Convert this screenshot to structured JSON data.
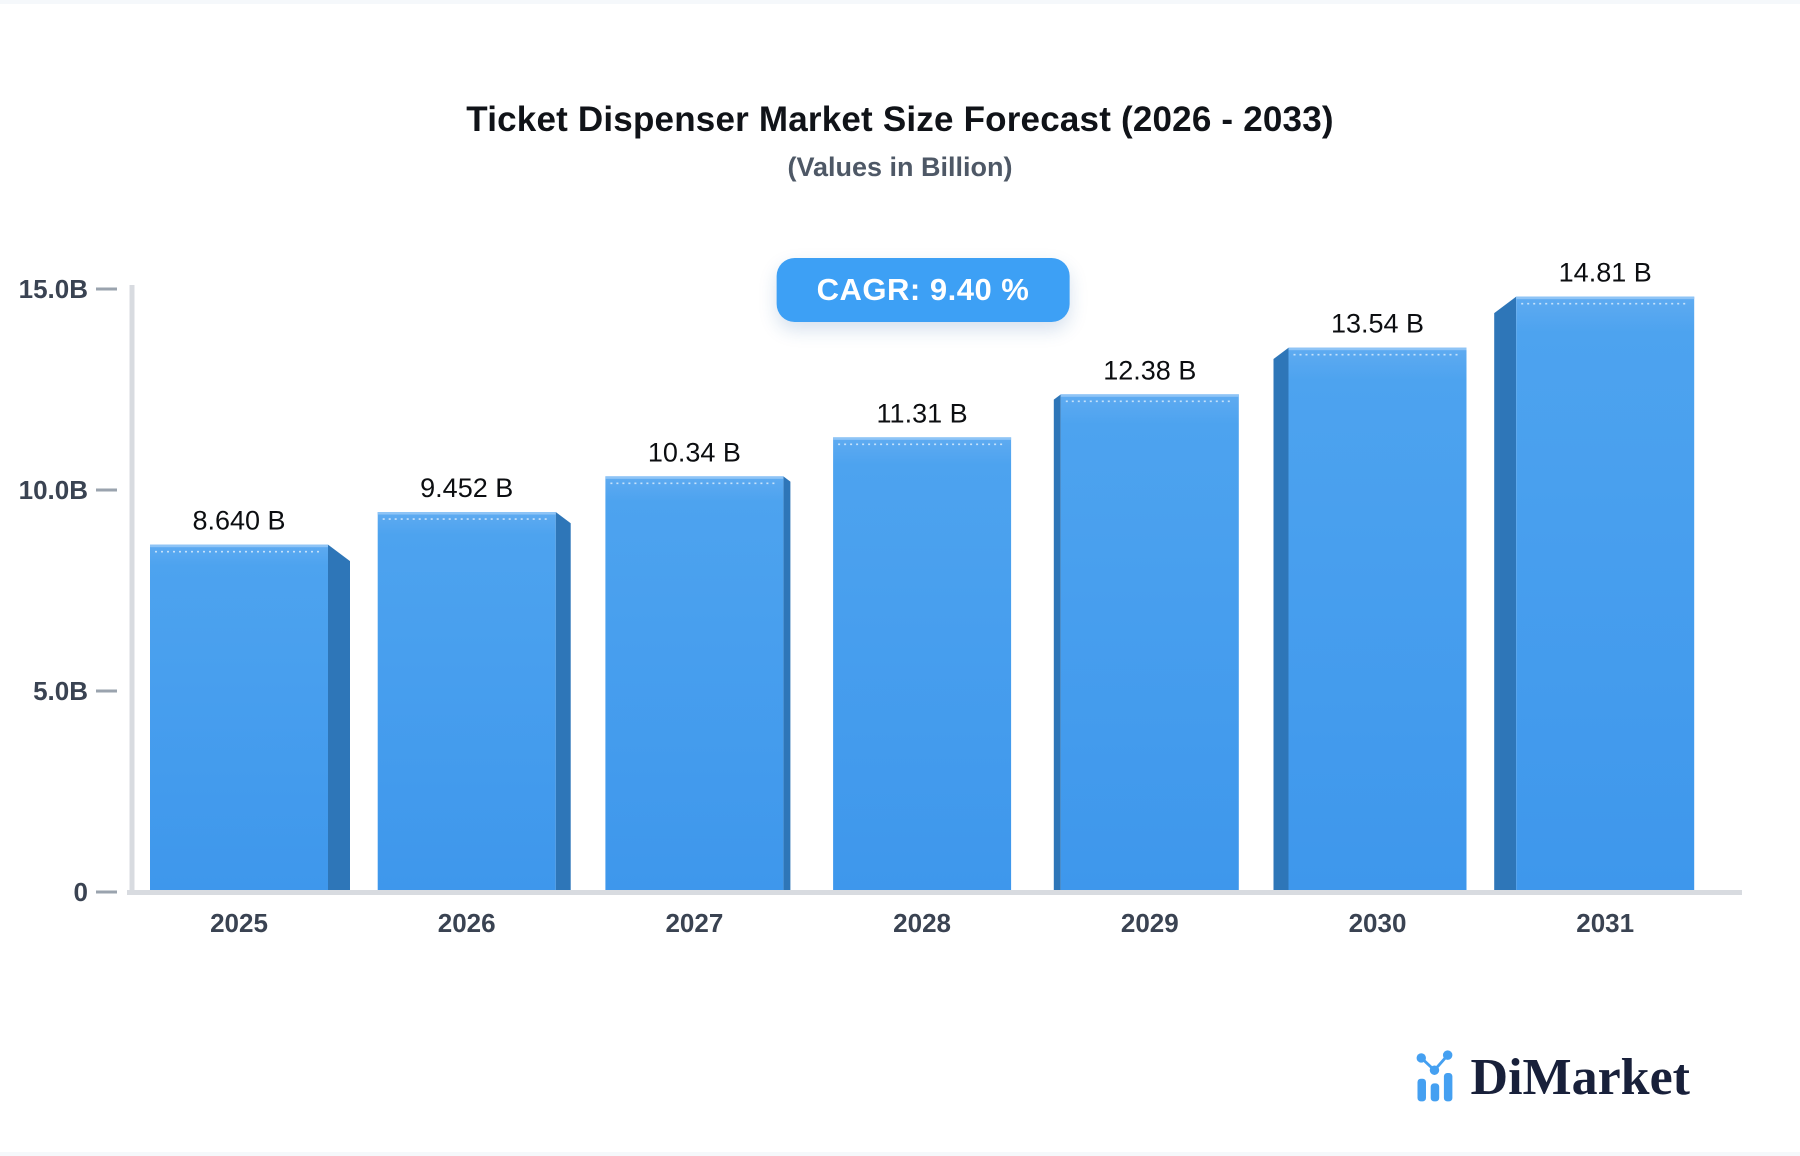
{
  "header": {
    "title": "Ticket Dispenser Market Size Forecast (2026 - 2033)",
    "subtitle": "(Values in Billion)"
  },
  "badge": {
    "label": "CAGR: 9.40 %",
    "color": "#3da0f5"
  },
  "chart_data": {
    "type": "bar",
    "title": "Ticket Dispenser Market Size Forecast (2026 - 2033)",
    "subtitle": "(Values in Billion)",
    "categories": [
      "2025",
      "2026",
      "2027",
      "2028",
      "2029",
      "2030",
      "2031"
    ],
    "values": [
      8.64,
      9.452,
      10.34,
      11.31,
      12.38,
      13.54,
      14.81
    ],
    "value_labels": [
      "8.640 B",
      "9.452 B",
      "10.34 B",
      "11.31 B",
      "12.38 B",
      "13.54 B",
      "14.81 B"
    ],
    "y_ticks": [
      {
        "label": "15.0B",
        "value": 15
      },
      {
        "label": "10.0B",
        "value": 10
      },
      {
        "label": "5.0B",
        "value": 5
      },
      {
        "label": "0",
        "value": 0
      }
    ],
    "ylim": [
      0,
      15
    ],
    "grid": false,
    "legend": null,
    "xlabel": "",
    "ylabel": "",
    "bar_face_color_top": "#5fabf1",
    "bar_face_color_bottom": "#3e97ec",
    "bar_side_color": "#2e76b8",
    "axis_color": "#d8dbe0",
    "tick_color": "#9aa3ae",
    "label_color": "#3a4352",
    "value_label_color": "#0c0e11"
  },
  "footer": {
    "brand": "DiMarket"
  }
}
